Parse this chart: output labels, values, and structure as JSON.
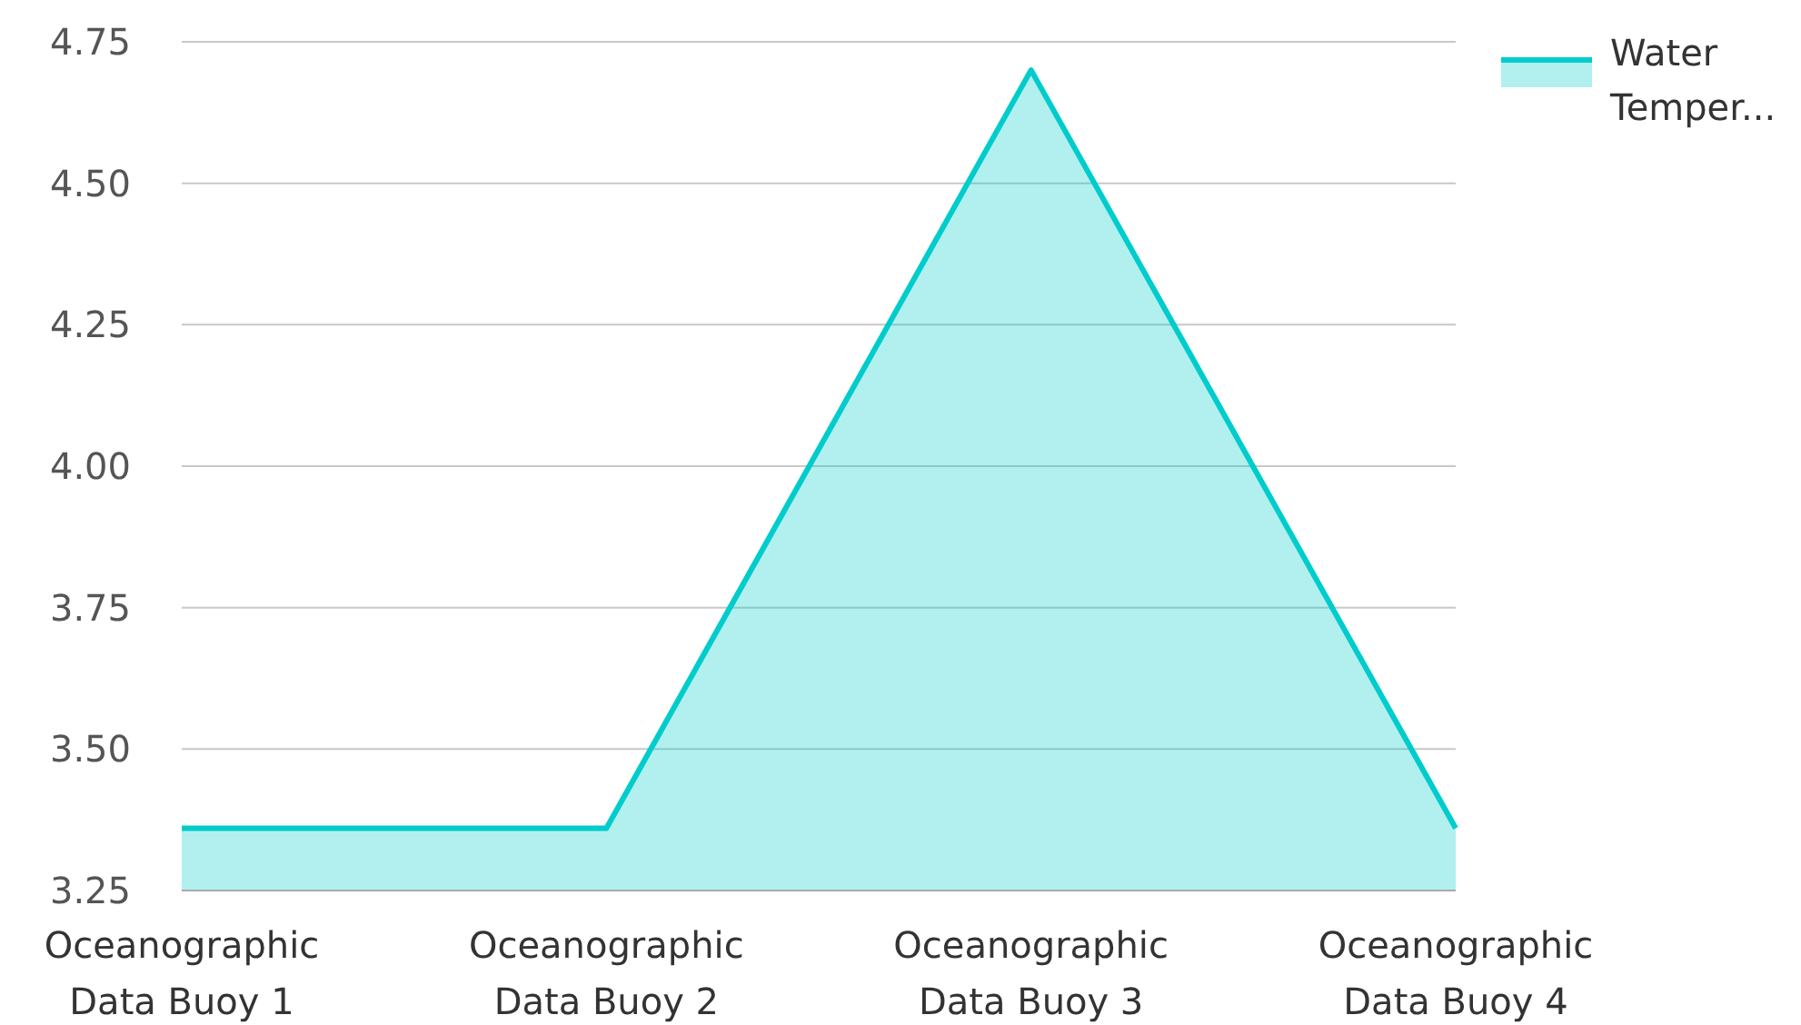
{
  "chart_data": {
    "type": "area",
    "categories": [
      "Oceanographic Data Buoy 1",
      "Oceanographic Data Buoy 2",
      "Oceanographic Data Buoy 3",
      "Oceanographic Data Buoy 4"
    ],
    "series": [
      {
        "name": "Water Temper...",
        "color": "#00cccc",
        "values": [
          3.36,
          3.36,
          4.7,
          3.36
        ]
      }
    ],
    "ylim": [
      3.25,
      4.75
    ],
    "yticks": [
      {
        "value": 3.25,
        "label": "3.25"
      },
      {
        "value": 3.5,
        "label": "3.50"
      },
      {
        "value": 3.75,
        "label": "3.75"
      },
      {
        "value": 4,
        "label": "4.00"
      },
      {
        "value": 4.25,
        "label": "4.25"
      },
      {
        "value": 4.5,
        "label": "4.50"
      },
      {
        "value": 4.75,
        "label": "4.75"
      }
    ],
    "grid": "y",
    "legend": "top right"
  }
}
